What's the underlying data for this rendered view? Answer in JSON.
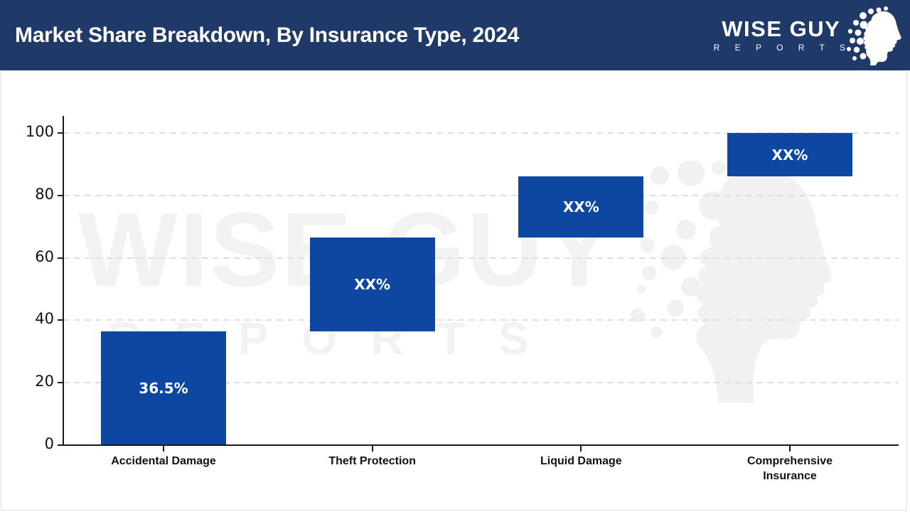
{
  "header": {
    "title": "Market Share Breakdown, By Insurance Type, 2024",
    "logo": {
      "line1": "WISE GUY",
      "line2": "R E P O R T S"
    }
  },
  "watermark": {
    "line1": "WISE GUY",
    "line2": "REPORTS"
  },
  "colors": {
    "header_bg": "#1f3a68",
    "bar": "#0d47a1",
    "bar_label": "#ffffff",
    "watermark": "#f2f2f2",
    "grid": "#dfdfdf",
    "axis": "#1a1a1a",
    "card_border": "#dcdcdc"
  },
  "chart_data": {
    "type": "bar",
    "subtype": "waterfall",
    "title": "Market Share Breakdown, By Insurance Type, 2024",
    "categories": [
      "Accidental Damage",
      "Theft Protection",
      "Liquid Damage",
      "Comprehensive Insurance"
    ],
    "segments": [
      {
        "category": "Accidental Damage",
        "start": 0,
        "end": 36.5,
        "value": 36.5,
        "label": "36.5%"
      },
      {
        "category": "Theft Protection",
        "start": 36.5,
        "end": 66.5,
        "value": 30,
        "label": "XX%"
      },
      {
        "category": "Liquid Damage",
        "start": 66.5,
        "end": 86,
        "value": 19.5,
        "label": "XX%"
      },
      {
        "category": "Comprehensive Insurance",
        "start": 86,
        "end": 100,
        "value": 14,
        "label": "XX%"
      }
    ],
    "xlabel": "",
    "ylabel": "",
    "ylim": [
      0,
      100
    ],
    "yticks": [
      0,
      20,
      40,
      60,
      80,
      100
    ],
    "grid": "horizontal-dashed",
    "legend": "none",
    "bar_color": "#0d47a1",
    "value_label_color": "#ffffff"
  }
}
